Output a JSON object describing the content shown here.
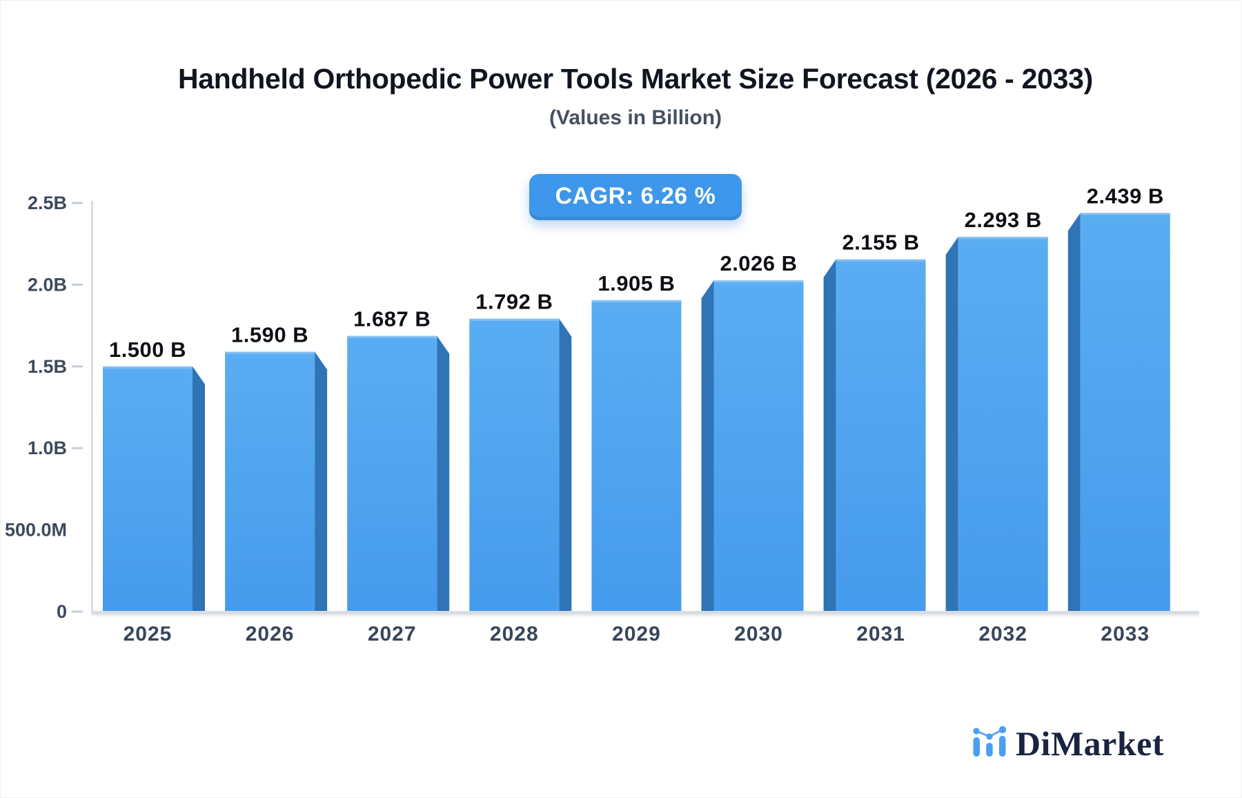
{
  "chart_data": {
    "type": "bar",
    "title": "Handheld Orthopedic Power Tools Market Size Forecast (2026 - 2033)",
    "subtitle": "(Values in Billion)",
    "annotations": {
      "cagr_badge": "CAGR: 6.26 %"
    },
    "categories": [
      "2025",
      "2026",
      "2027",
      "2028",
      "2029",
      "2030",
      "2031",
      "2032",
      "2033"
    ],
    "values": [
      1.5,
      1.59,
      1.687,
      1.792,
      1.905,
      2.026,
      2.155,
      2.293,
      2.439
    ],
    "value_labels": [
      "1.500 B",
      "1.590 B",
      "1.687 B",
      "1.792 B",
      "1.905 B",
      "2.026 B",
      "2.155 B",
      "2.293 B",
      "2.439 B"
    ],
    "xlabel": "",
    "ylabel": "",
    "ylim": [
      0,
      2.5
    ],
    "yticks": [
      {
        "label": "2.5B",
        "value": 2.5,
        "tick": true
      },
      {
        "label": "2.0B",
        "value": 2.0,
        "tick": true
      },
      {
        "label": "1.5B",
        "value": 1.5,
        "tick": true
      },
      {
        "label": "1.0B",
        "value": 1.0,
        "tick": true
      },
      {
        "label": "500.0M",
        "value": 0.5,
        "tick": false
      },
      {
        "label": "0",
        "value": 0.0,
        "tick": true
      }
    ],
    "grid": false,
    "legend": null,
    "bar_style": "3d-beveled, perspective from center (side shading faces outward)"
  },
  "colors": {
    "bar_face_top": "#5badf2",
    "bar_face_bottom": "#459bec",
    "bar_face_highlight": "#86c0f6",
    "bar_side": "#2e74b6",
    "badge_bg": "#3e97ea",
    "badge_text": "#ffffff",
    "title": "#10151f",
    "subtitle": "#46505e",
    "axis_label": "#3d4a5c",
    "x_label": "#38455a",
    "value_label": "#0c0e13",
    "axis_line": "#d9dde3",
    "tick": "#c7cdd5",
    "baseline_shadow": "#edeff2",
    "logo_text": "#1a2340",
    "logo_blue": "#4aa0f0"
  },
  "logo": {
    "text": "DiMarket"
  }
}
